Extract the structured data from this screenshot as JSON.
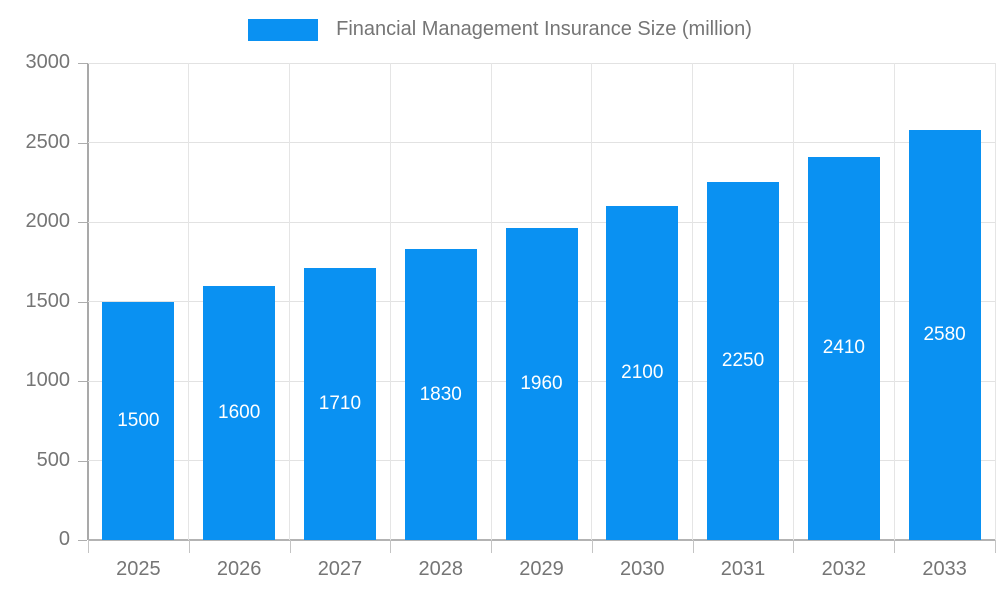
{
  "legend": {
    "label": "Financial Management Insurance Size (million)"
  },
  "chart_data": {
    "type": "bar",
    "title": "Financial Management Insurance Size (million)",
    "categories": [
      "2025",
      "2026",
      "2027",
      "2028",
      "2029",
      "2030",
      "2031",
      "2032",
      "2033"
    ],
    "values": [
      1500,
      1600,
      1710,
      1830,
      1960,
      2100,
      2250,
      2410,
      2580
    ],
    "xlabel": "",
    "ylabel": "",
    "ylim": [
      0,
      3000
    ],
    "yticks": [
      0,
      500,
      1000,
      1500,
      2000,
      2500,
      3000
    ],
    "grid": true,
    "legend_position": "top",
    "bar_labels_visible": true
  },
  "colors": {
    "bar": "#0a91f2",
    "bar_label": "#ffffff",
    "axis_text": "#757575",
    "gridline": "#e2e2e2",
    "axis_line": "#adadad",
    "background": "#ffffff"
  }
}
